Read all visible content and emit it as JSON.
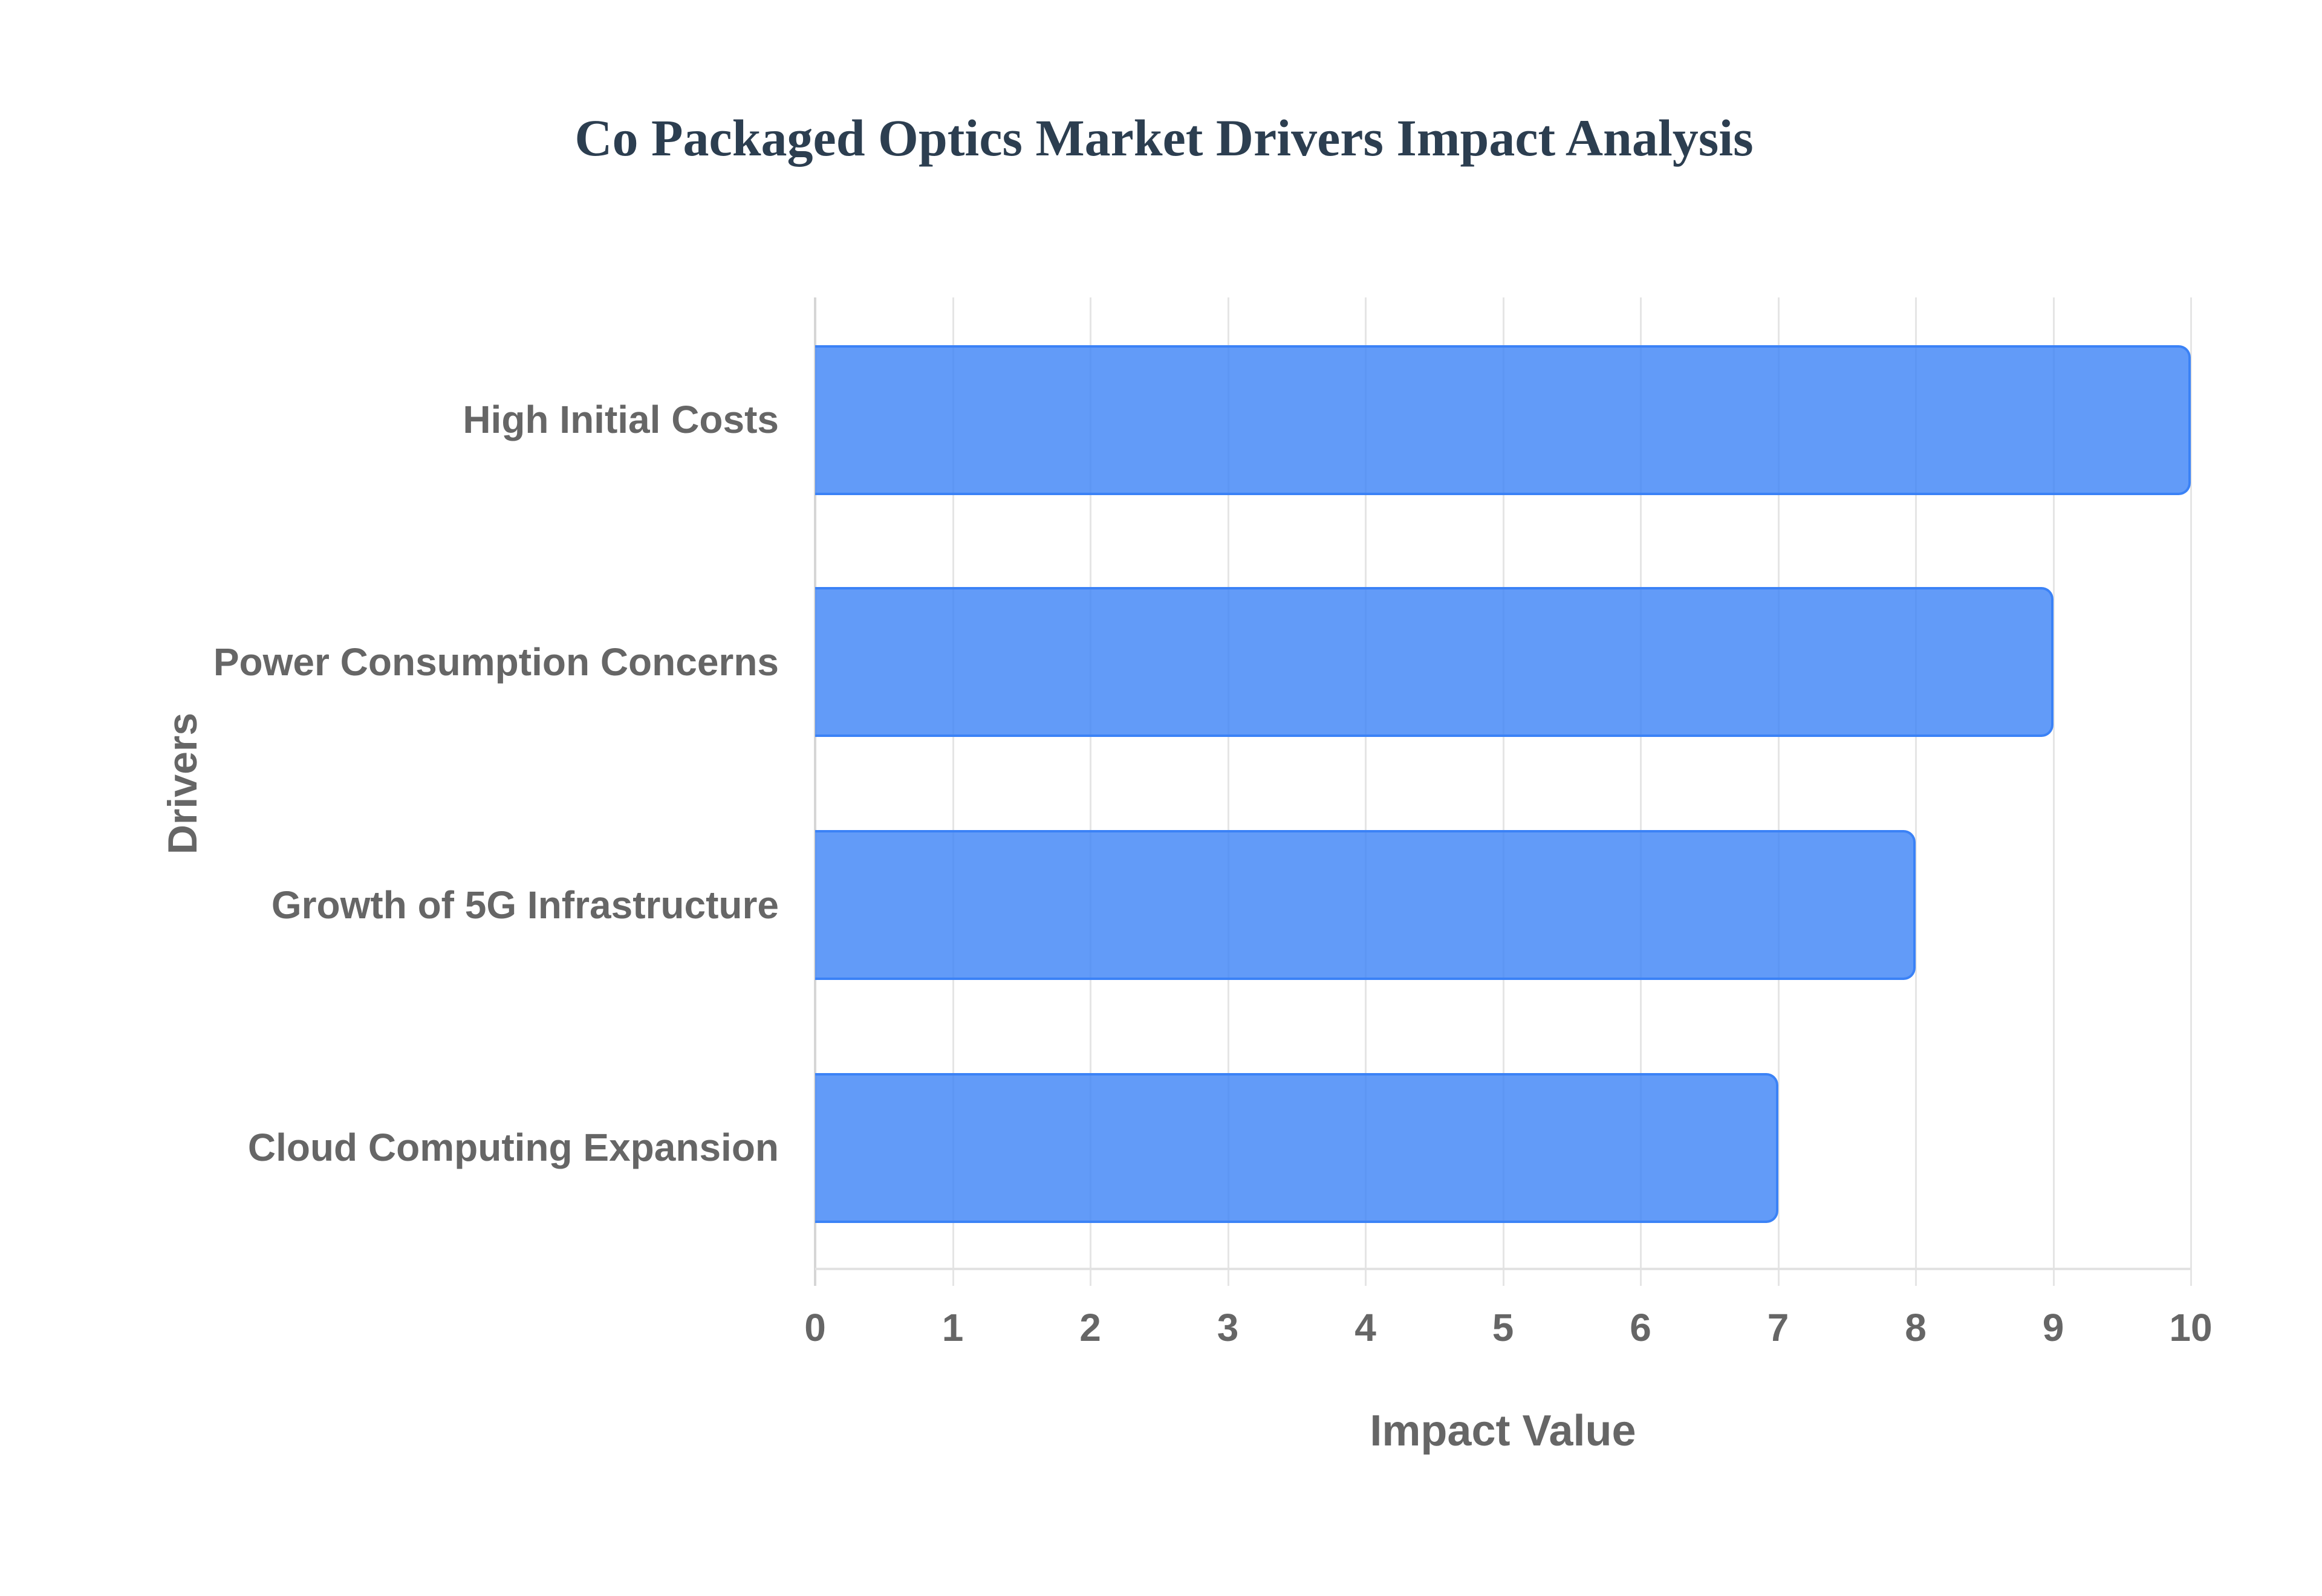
{
  "chart_data": {
    "type": "bar",
    "orientation": "horizontal",
    "title": "Co Packaged Optics Market Drivers Impact Analysis",
    "xlabel": "Impact Value",
    "ylabel": "Drivers",
    "categories": [
      "High Initial Costs",
      "Power Consumption Concerns",
      "Growth of 5G Infrastructure",
      "Cloud Computing Expansion"
    ],
    "values": [
      10,
      9,
      8,
      7
    ],
    "xlim": [
      0,
      10
    ],
    "x_ticks": [
      "0",
      "1",
      "2",
      "3",
      "4",
      "5",
      "6",
      "7",
      "8",
      "9",
      "10"
    ],
    "grid": true,
    "legend": null,
    "colors": {
      "bar_fill": "#6399f7",
      "bar_border": "#3b82f6",
      "title": "#2c3e50",
      "axis_text": "#666666",
      "gridline": "#e5e5e5"
    }
  }
}
